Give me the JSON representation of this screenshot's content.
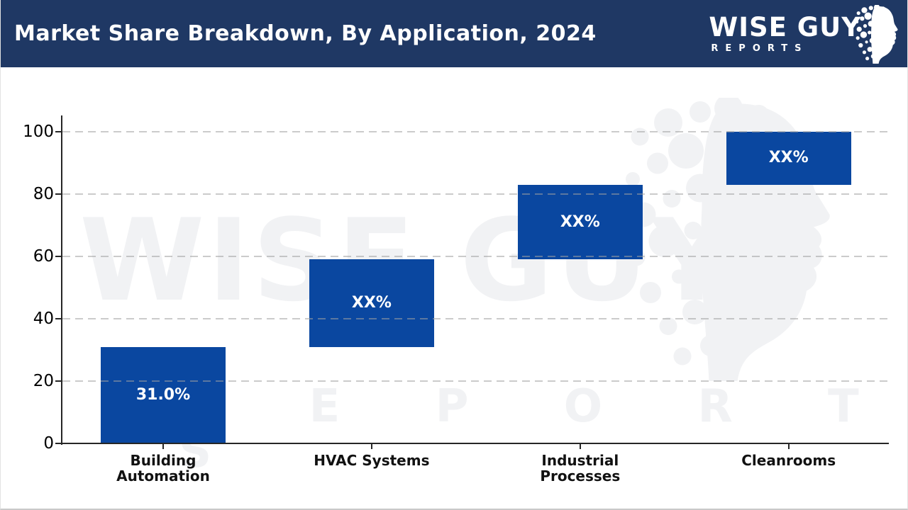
{
  "header": {
    "title": "Market Share Breakdown, By Application, 2024",
    "bg_color": "#1f3864",
    "logo": {
      "wordmark": "WISE GUY",
      "subtext": "REPORTS"
    }
  },
  "watermark": {
    "wordmark": "WISE GUY",
    "subtext": "R E P O R T S",
    "color": "#f1f2f4"
  },
  "chart_data": {
    "type": "bar",
    "subtype": "waterfall",
    "title": "Market Share Breakdown, By Application, 2024",
    "categories": [
      "Building Automation",
      "HVAC Systems",
      "Industrial Processes",
      "Cleanrooms"
    ],
    "category_lines": [
      [
        "Building",
        "Automation"
      ],
      [
        "HVAC Systems"
      ],
      [
        "Industrial",
        "Processes"
      ],
      [
        "Cleanrooms"
      ]
    ],
    "bars": [
      {
        "category": "Building Automation",
        "start": 0,
        "end": 31,
        "label": "31.0%"
      },
      {
        "category": "HVAC Systems",
        "start": 31,
        "end": 59,
        "label": "XX%"
      },
      {
        "category": "Industrial Processes",
        "start": 59,
        "end": 83,
        "label": "XX%"
      },
      {
        "category": "Cleanrooms",
        "start": 83,
        "end": 100,
        "label": "XX%"
      }
    ],
    "xlabel": "",
    "ylabel": "",
    "ylim": [
      0,
      105
    ],
    "yticks": [
      0,
      20,
      40,
      60,
      80,
      100
    ],
    "grid": true,
    "grid_style": "dashed",
    "legend": "none",
    "bar_color": "#0a47a0",
    "bar_label_color": "#ffffff",
    "axis_color": "#262626",
    "tick_label_color": "#000000"
  }
}
